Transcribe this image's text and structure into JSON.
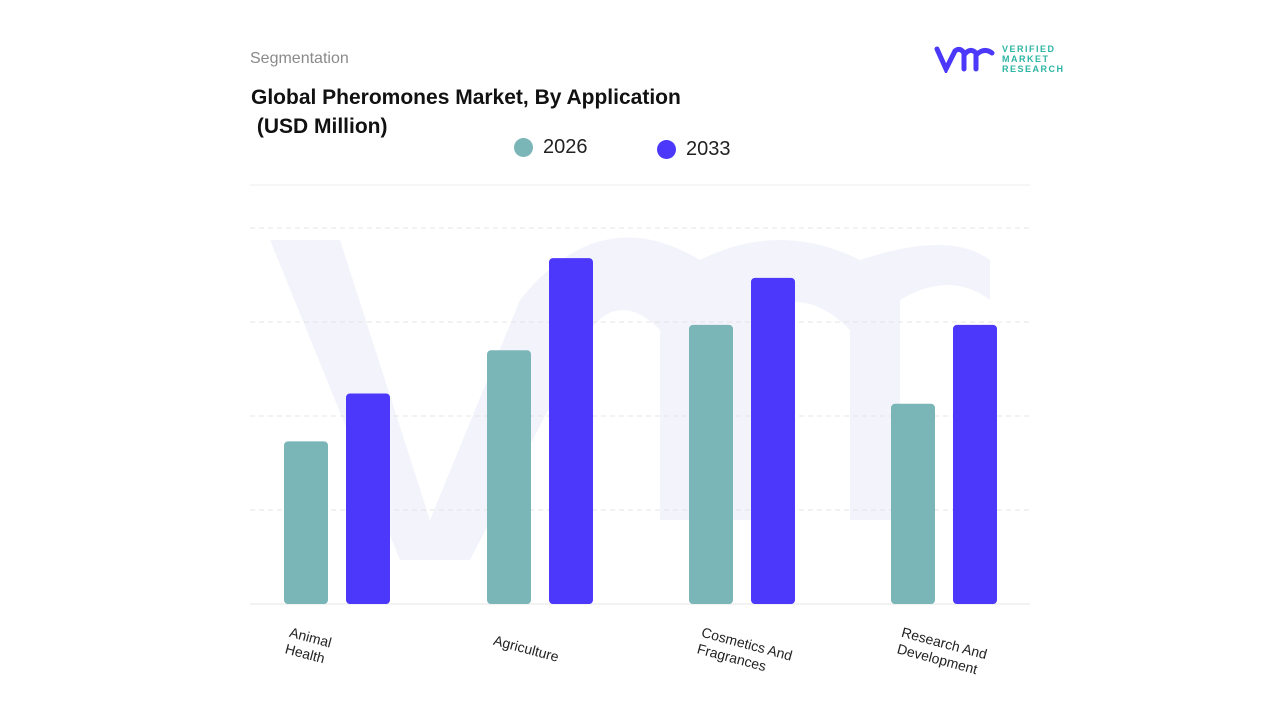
{
  "header": {
    "segment_label": "Segmentation",
    "logo_text": [
      "VERIFIED",
      "MARKET",
      "RESEARCH"
    ]
  },
  "chart_data": {
    "type": "bar",
    "title": "Global Pheromones Market, By Application\n (USD Million)",
    "categories": [
      "Animal\nHealth",
      "Agriculture",
      "Cosmetics And\nFragrances",
      "Research And\nDevelopment"
    ],
    "series": [
      {
        "name": "2026",
        "color": "#7ab5b8",
        "values": [
          1.73,
          2.7,
          2.97,
          2.13
        ]
      },
      {
        "name": "2033",
        "color": "#4b38fb",
        "values": [
          2.24,
          3.68,
          3.47,
          2.97
        ]
      }
    ],
    "ylim": [
      0,
      4
    ],
    "grid": true,
    "legend": "top-center",
    "xlabel": "",
    "ylabel": ""
  }
}
